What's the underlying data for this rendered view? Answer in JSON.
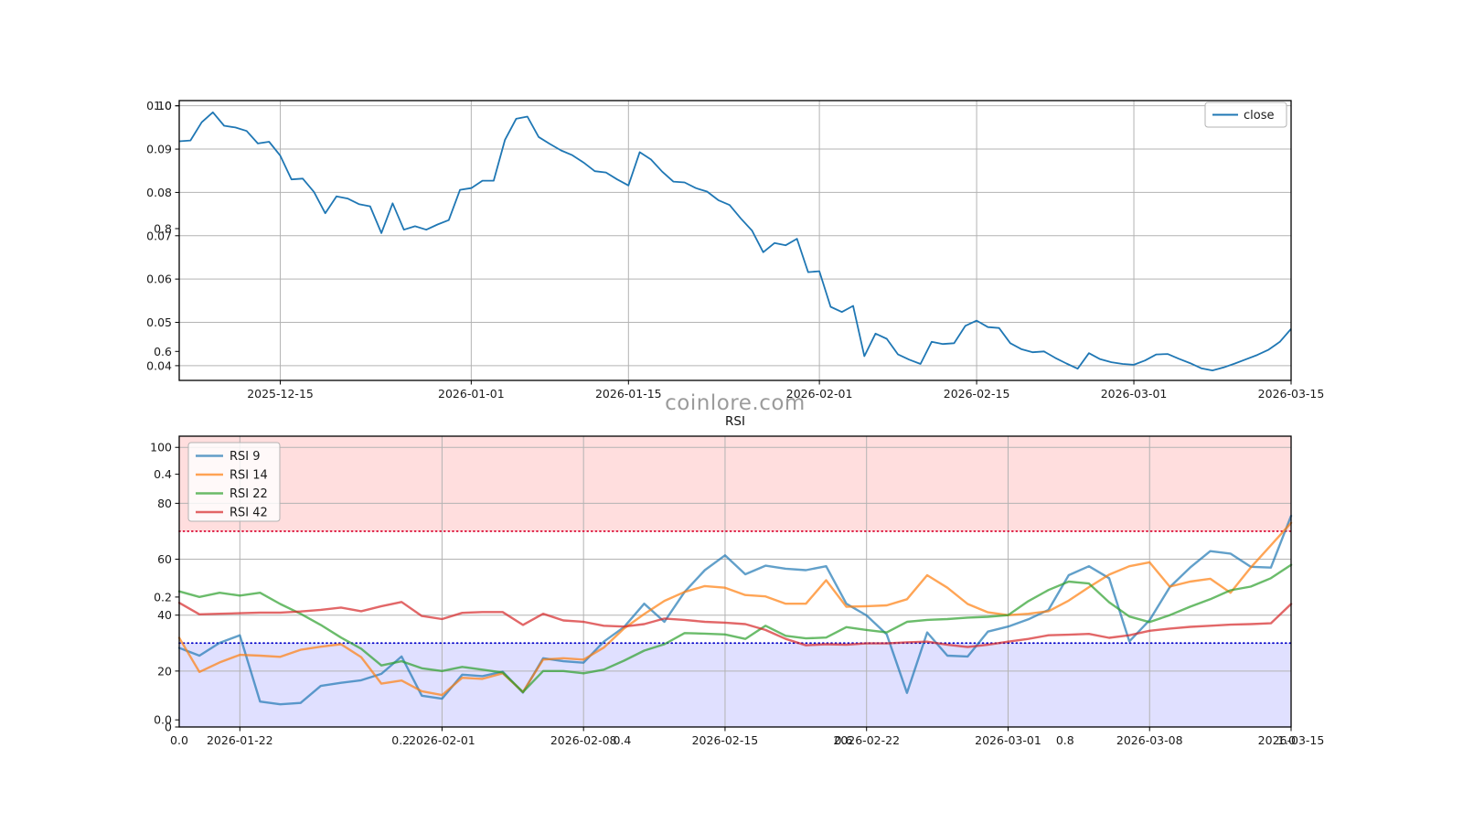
{
  "watermark": "coinlore.com",
  "overlay_axis": {
    "y_labels": [
      "1.0",
      "0.8",
      "0.6",
      "0.4",
      "0.2",
      "0.0"
    ],
    "x_labels": [
      "0.0",
      "0.2",
      "0.4",
      "0.6",
      "0.8",
      "1.0"
    ]
  },
  "colors": {
    "close_line": "#1f77b4",
    "rsi9": "rgba(31,119,180,0.7)",
    "rsi14": "rgba(255,127,14,0.7)",
    "rsi22": "rgba(44,160,44,0.7)",
    "rsi42": "rgba(214,39,40,0.7)",
    "overbought_band": "rgba(255,0,0,0.13)",
    "oversold_band": "rgba(0,0,255,0.12)",
    "overbought_line": "#dc143c",
    "oversold_line": "#0000c8",
    "grid": "#b3b3b3",
    "spine": "#000000",
    "tick_text": "#1a1a1a",
    "legend_border": "#b3b3b3"
  },
  "chart_data": [
    {
      "type": "line",
      "title": "",
      "panel": "price",
      "ylabel": "",
      "ylim": [
        0.0366,
        0.1012
      ],
      "grid": true,
      "legend_position": "upper right",
      "y_ticks": [
        {
          "label": "0.10",
          "value": 0.1
        },
        {
          "label": "0.09",
          "value": 0.09
        },
        {
          "label": "0.08",
          "value": 0.08
        },
        {
          "label": "0.07",
          "value": 0.07
        },
        {
          "label": "0.06",
          "value": 0.06
        },
        {
          "label": "0.05",
          "value": 0.05
        },
        {
          "label": "0.04",
          "value": 0.04
        }
      ],
      "x_ticks": [
        {
          "label": "2025-12-15",
          "day": 9
        },
        {
          "label": "2026-01-01",
          "day": 26
        },
        {
          "label": "2026-01-15",
          "day": 40
        },
        {
          "label": "2026-02-01",
          "day": 57
        },
        {
          "label": "2026-02-15",
          "day": 71
        },
        {
          "label": "2026-03-01",
          "day": 85
        },
        {
          "label": "2026-03-15",
          "day": 99
        }
      ],
      "series": [
        {
          "name": "close",
          "day0": 0,
          "values": [
            0.0918,
            0.092,
            0.0962,
            0.0985,
            0.0954,
            0.095,
            0.0942,
            0.0913,
            0.0917,
            0.0885,
            0.083,
            0.0832,
            0.0801,
            0.0752,
            0.0791,
            0.0786,
            0.0773,
            0.0768,
            0.0706,
            0.0775,
            0.0714,
            0.0722,
            0.0714,
            0.0726,
            0.0736,
            0.0806,
            0.081,
            0.0827,
            0.0827,
            0.0921,
            0.097,
            0.0975,
            0.0928,
            0.0912,
            0.0897,
            0.0886,
            0.0869,
            0.0849,
            0.0846,
            0.083,
            0.0816,
            0.0893,
            0.0876,
            0.0848,
            0.0825,
            0.0823,
            0.081,
            0.0802,
            0.0782,
            0.0771,
            0.074,
            0.0712,
            0.0662,
            0.0683,
            0.0678,
            0.0693,
            0.0616,
            0.0618,
            0.0536,
            0.0524,
            0.0538,
            0.0422,
            0.0474,
            0.0462,
            0.0426,
            0.0414,
            0.0404,
            0.0455,
            0.045,
            0.0452,
            0.0492,
            0.0504,
            0.0489,
            0.0487,
            0.0452,
            0.0438,
            0.0431,
            0.0433,
            0.0418,
            0.0405,
            0.0393,
            0.0429,
            0.0415,
            0.0408,
            0.0404,
            0.0402,
            0.0412,
            0.0426,
            0.0427,
            0.0416,
            0.0406,
            0.0394,
            0.0389,
            0.0396,
            0.0405,
            0.0415,
            0.0425,
            0.0437,
            0.0455,
            0.0485
          ]
        }
      ]
    },
    {
      "type": "line",
      "title": "RSI",
      "panel": "rsi",
      "ylim": [
        0,
        104
      ],
      "grid": true,
      "legend_position": "upper left",
      "overbought_level": 70,
      "oversold_level": 30,
      "y_ticks": [
        {
          "label": "100",
          "value": 100
        },
        {
          "label": "80",
          "value": 80
        },
        {
          "label": "60",
          "value": 60
        },
        {
          "label": "40",
          "value": 40
        },
        {
          "label": "20",
          "value": 20
        },
        {
          "label": "0",
          "value": 0
        }
      ],
      "x_ticks": [
        {
          "label": "2026-01-22",
          "day": 47
        },
        {
          "label": "2026-02-01",
          "day": 57
        },
        {
          "label": "2026-02-08",
          "day": 64
        },
        {
          "label": "2026-02-15",
          "day": 71
        },
        {
          "label": "2026-02-22",
          "day": 78
        },
        {
          "label": "2026-03-01",
          "day": 85
        },
        {
          "label": "2026-03-08",
          "day": 92
        },
        {
          "label": "2026-03-15",
          "day": 99
        }
      ],
      "series": [
        {
          "name": "RSI 9",
          "day0": 44,
          "values": [
            28.3,
            25.5,
            30.1,
            32.8,
            9.1,
            8.1,
            8.6,
            14.7,
            15.8,
            16.7,
            19.0,
            25.2,
            11.2,
            10.1,
            18.7,
            18.2,
            19.8,
            12.3,
            24.6,
            23.5,
            23.0,
            30.5,
            35.7,
            44.1,
            37.6,
            48.3,
            56.1,
            61.4,
            54.6,
            57.7,
            56.6,
            56.1,
            57.5,
            44.1,
            39.9,
            33.1,
            12.2,
            33.8,
            25.5,
            25.2,
            34.1,
            35.9,
            38.5,
            41.9,
            54.3,
            57.5,
            53.2,
            30.6,
            38.2,
            50.0,
            57.0,
            62.9,
            62.0,
            57.3,
            57.0,
            75.5
          ]
        },
        {
          "name": "RSI 14",
          "day0": 44,
          "values": [
            31.9,
            19.7,
            23.1,
            25.8,
            25.5,
            25.1,
            27.6,
            28.7,
            29.6,
            25.0,
            15.5,
            16.6,
            12.8,
            11.4,
            17.6,
            17.2,
            19.2,
            12.5,
            24.1,
            24.6,
            24.1,
            28.4,
            35.2,
            40.4,
            45.1,
            48.3,
            50.4,
            49.8,
            47.2,
            46.7,
            44.1,
            44.1,
            52.5,
            43.0,
            43.2,
            43.5,
            45.7,
            54.3,
            49.8,
            44.0,
            41.0,
            40.0,
            40.5,
            41.4,
            45.2,
            50.0,
            54.5,
            57.5,
            58.9,
            50.2,
            52.0,
            53.0,
            48.0,
            57.0,
            65.0,
            73.0
          ]
        },
        {
          "name": "RSI 22",
          "day0": 44,
          "values": [
            48.5,
            46.5,
            48.0,
            47.0,
            48.0,
            44.0,
            40.5,
            36.5,
            32.0,
            28.0,
            22.0,
            23.5,
            21.0,
            20.0,
            21.5,
            20.5,
            19.5,
            12.5,
            20.0,
            20.0,
            19.2,
            20.5,
            23.7,
            27.3,
            29.6,
            33.6,
            33.4,
            33.1,
            31.5,
            36.2,
            32.6,
            31.7,
            32.0,
            35.7,
            34.7,
            33.8,
            37.6,
            38.3,
            38.6,
            39.1,
            39.4,
            40.0,
            45.0,
            49.0,
            52.0,
            51.3,
            44.6,
            39.5,
            37.5,
            40.0,
            43.0,
            45.7,
            48.9,
            50.2,
            53.2,
            58.0
          ]
        },
        {
          "name": "RSI 42",
          "day0": 44,
          "values": [
            44.4,
            40.3,
            40.5,
            40.7,
            40.9,
            40.9,
            41.3,
            41.9,
            42.7,
            41.4,
            43.2,
            44.7,
            39.7,
            38.6,
            40.8,
            41.1,
            41.1,
            36.5,
            40.5,
            38.1,
            37.6,
            36.2,
            35.9,
            36.8,
            38.8,
            38.3,
            37.6,
            37.3,
            36.8,
            34.7,
            31.5,
            29.2,
            29.6,
            29.4,
            29.9,
            29.9,
            30.3,
            30.5,
            29.4,
            28.6,
            29.4,
            30.5,
            31.5,
            32.8,
            33.0,
            33.3,
            31.9,
            32.8,
            34.4,
            35.2,
            35.8,
            36.2,
            36.6,
            36.8,
            37.1,
            44.0
          ]
        }
      ]
    }
  ]
}
